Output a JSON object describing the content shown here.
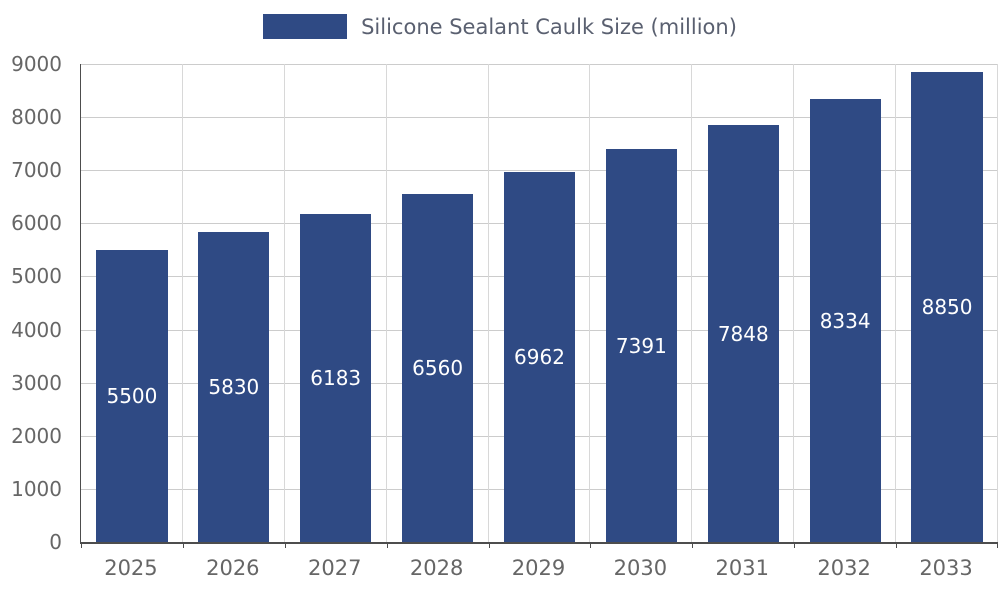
{
  "colors": {
    "bar": "#2f4a84",
    "grid": "#cccccc",
    "vgrid": "#d8d8d8",
    "axis": "#4d4d4d",
    "tick_label": "#666666",
    "bar_label": "#ffffff",
    "legend_text": "#5a6070"
  },
  "chart_data": {
    "type": "bar",
    "title": "Silicone Sealant Caulk Size (million)",
    "categories": [
      "2025",
      "2026",
      "2027",
      "2028",
      "2029",
      "2030",
      "2031",
      "2032",
      "2033"
    ],
    "values": [
      5500,
      5830,
      6183,
      6560,
      6962,
      7391,
      7848,
      8334,
      8850
    ],
    "xlabel": "",
    "ylabel": "",
    "ylim": [
      0,
      9000
    ],
    "ytick_step": 1000,
    "grid": true,
    "legend_position": "top",
    "bar_label_position": "inside-center"
  }
}
